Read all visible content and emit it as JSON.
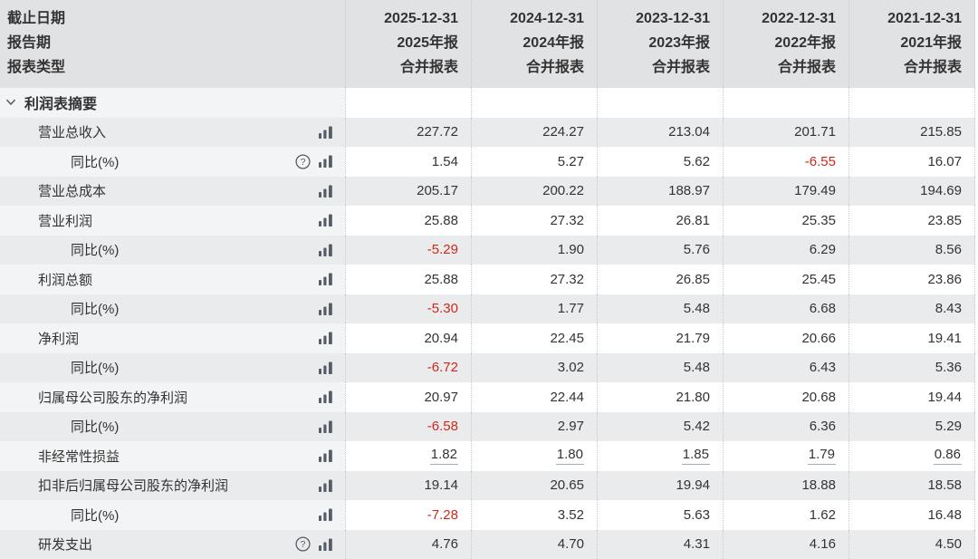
{
  "colors": {
    "header_bg": "#e1e2e4",
    "row_gray_bg": "#e9ebec",
    "row_light_label_bg": "#f3f4f5",
    "row_light_data_bg": "#ffffff",
    "text": "#333333",
    "negative": "#d0281c",
    "icon": "#565d66",
    "divider": "#c6cacd",
    "underline": "#a9adb2"
  },
  "icons": {
    "chevron_down": "∨",
    "help": "?",
    "chart": "▁▄▇"
  },
  "header": {
    "row_labels": [
      "截止日期",
      "报告期",
      "报表类型"
    ],
    "columns": [
      {
        "date": "2025-12-31",
        "period": "2025年报",
        "report_type": "合并报表"
      },
      {
        "date": "2024-12-31",
        "period": "2024年报",
        "report_type": "合并报表"
      },
      {
        "date": "2023-12-31",
        "period": "2023年报",
        "report_type": "合并报表"
      },
      {
        "date": "2022-12-31",
        "period": "2022年报",
        "report_type": "合并报表"
      },
      {
        "date": "2021-12-31",
        "period": "2021年报",
        "report_type": "合并报表"
      }
    ]
  },
  "section": {
    "label": "利润表摘要",
    "expanded": true
  },
  "rows": [
    {
      "label": "营业总收入",
      "indent": "metric",
      "help_icon": false,
      "chart_icon": true,
      "underline_values": false,
      "values": [
        "227.72",
        "224.27",
        "213.04",
        "201.71",
        "215.85"
      ]
    },
    {
      "label": "同比(%)",
      "indent": "sub",
      "help_icon": true,
      "chart_icon": true,
      "underline_values": false,
      "values": [
        "1.54",
        "5.27",
        "5.62",
        "-6.55",
        "16.07"
      ]
    },
    {
      "label": "营业总成本",
      "indent": "metric",
      "help_icon": false,
      "chart_icon": true,
      "underline_values": false,
      "values": [
        "205.17",
        "200.22",
        "188.97",
        "179.49",
        "194.69"
      ]
    },
    {
      "label": "营业利润",
      "indent": "metric",
      "help_icon": false,
      "chart_icon": true,
      "underline_values": false,
      "values": [
        "25.88",
        "27.32",
        "26.81",
        "25.35",
        "23.85"
      ]
    },
    {
      "label": "同比(%)",
      "indent": "sub",
      "help_icon": false,
      "chart_icon": true,
      "underline_values": false,
      "values": [
        "-5.29",
        "1.90",
        "5.76",
        "6.29",
        "8.56"
      ]
    },
    {
      "label": "利润总额",
      "indent": "metric",
      "help_icon": false,
      "chart_icon": true,
      "underline_values": false,
      "values": [
        "25.88",
        "27.32",
        "26.85",
        "25.45",
        "23.86"
      ]
    },
    {
      "label": "同比(%)",
      "indent": "sub",
      "help_icon": false,
      "chart_icon": true,
      "underline_values": false,
      "values": [
        "-5.30",
        "1.77",
        "5.48",
        "6.68",
        "8.43"
      ]
    },
    {
      "label": "净利润",
      "indent": "metric",
      "help_icon": false,
      "chart_icon": true,
      "underline_values": false,
      "values": [
        "20.94",
        "22.45",
        "21.79",
        "20.66",
        "19.41"
      ]
    },
    {
      "label": "同比(%)",
      "indent": "sub",
      "help_icon": false,
      "chart_icon": true,
      "underline_values": false,
      "values": [
        "-6.72",
        "3.02",
        "5.48",
        "6.43",
        "5.36"
      ]
    },
    {
      "label": "归属母公司股东的净利润",
      "indent": "metric",
      "help_icon": false,
      "chart_icon": true,
      "underline_values": false,
      "values": [
        "20.97",
        "22.44",
        "21.80",
        "20.68",
        "19.44"
      ]
    },
    {
      "label": "同比(%)",
      "indent": "sub",
      "help_icon": false,
      "chart_icon": true,
      "underline_values": false,
      "values": [
        "-6.58",
        "2.97",
        "5.42",
        "6.36",
        "5.29"
      ]
    },
    {
      "label": "非经常性损益",
      "indent": "metric",
      "help_icon": false,
      "chart_icon": true,
      "underline_values": true,
      "values": [
        "1.82",
        "1.80",
        "1.85",
        "1.79",
        "0.86"
      ]
    },
    {
      "label": "扣非后归属母公司股东的净利润",
      "indent": "metric",
      "help_icon": false,
      "chart_icon": true,
      "underline_values": false,
      "values": [
        "19.14",
        "20.65",
        "19.94",
        "18.88",
        "18.58"
      ]
    },
    {
      "label": "同比(%)",
      "indent": "sub",
      "help_icon": false,
      "chart_icon": true,
      "underline_values": false,
      "values": [
        "-7.28",
        "3.52",
        "5.63",
        "1.62",
        "16.48"
      ]
    },
    {
      "label": "研发支出",
      "indent": "metric",
      "help_icon": true,
      "chart_icon": true,
      "underline_values": false,
      "values": [
        "4.76",
        "4.70",
        "4.31",
        "4.16",
        "4.50"
      ]
    }
  ]
}
